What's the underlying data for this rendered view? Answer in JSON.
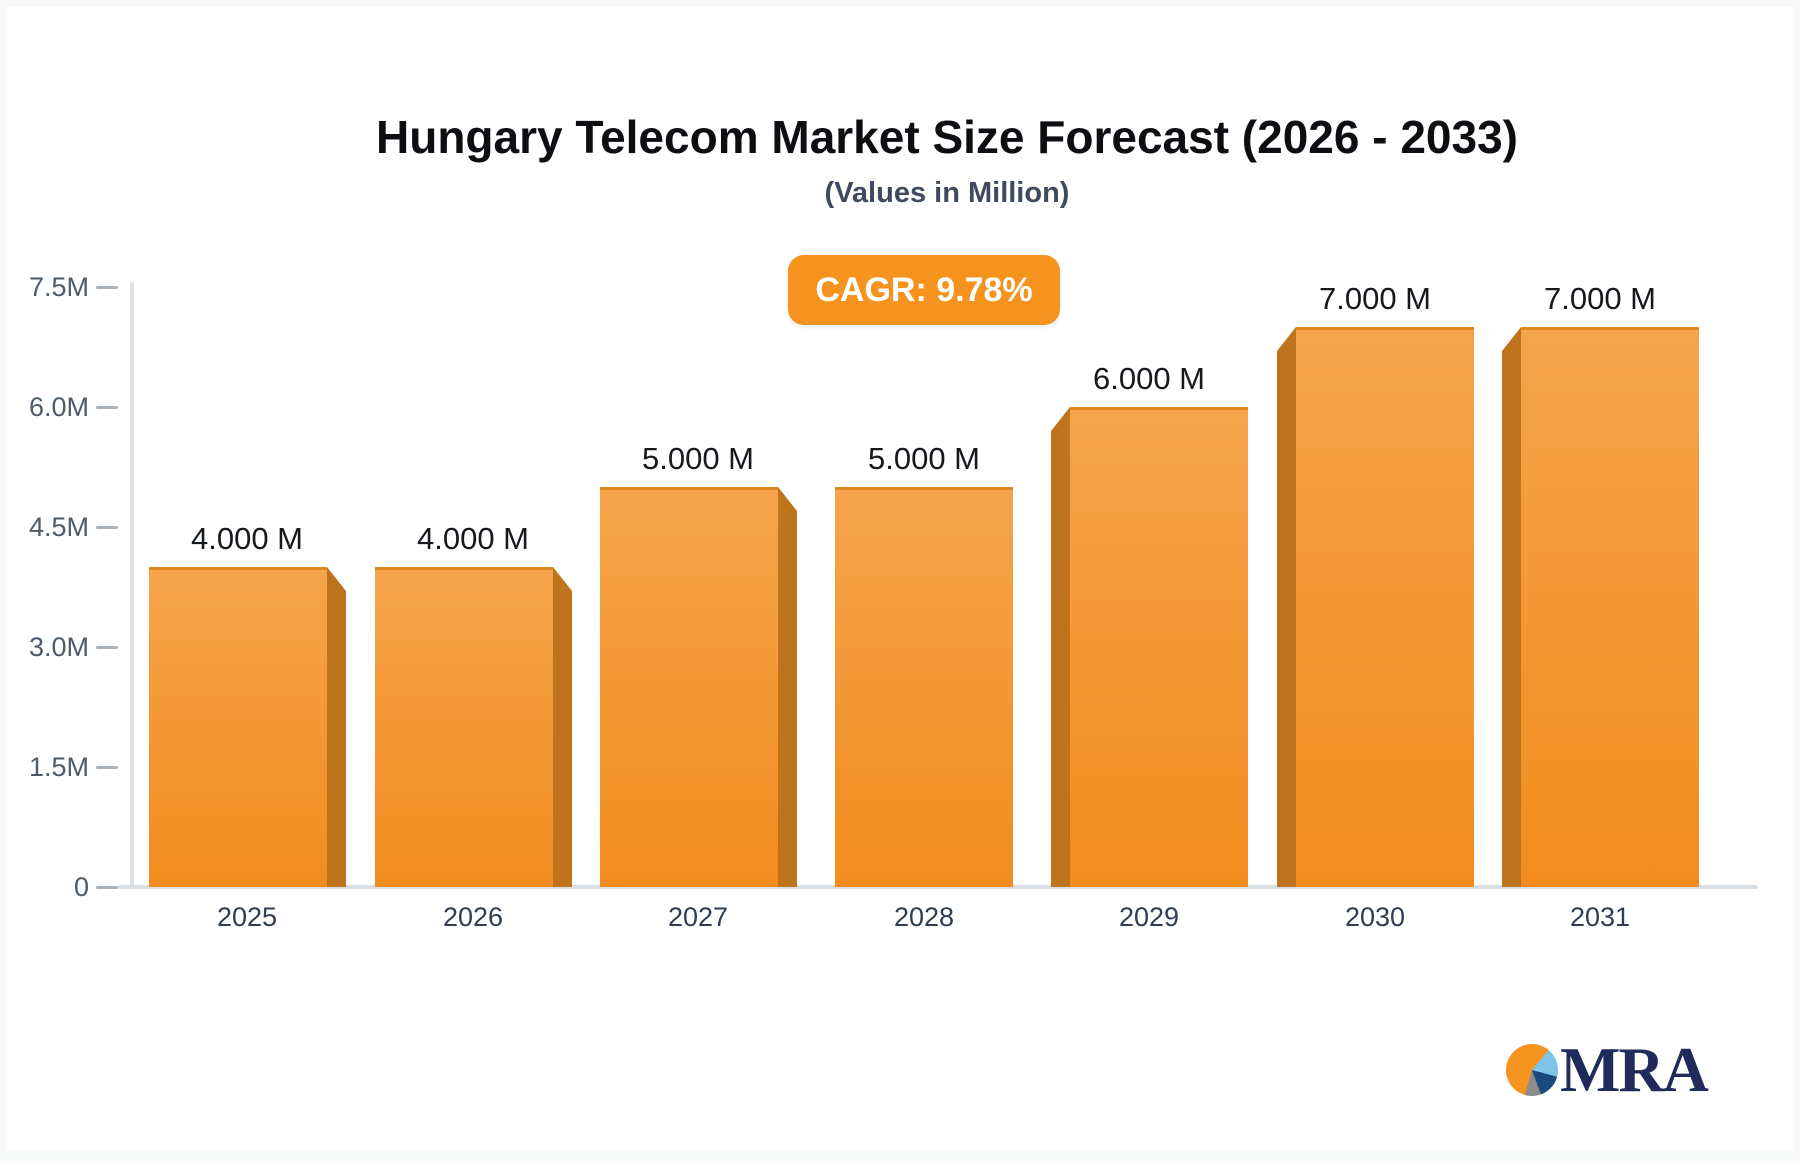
{
  "title": "Hungary Telecom Market Size Forecast (2026 - 2033)",
  "subtitle": "(Values in Million)",
  "badge": {
    "label": "CAGR: 9.78%",
    "bg": "#f6921e"
  },
  "chart_data": {
    "type": "bar",
    "title": "Hungary Telecom Market Size Forecast (2026 - 2033)",
    "subtitle": "(Values in Million)",
    "cagr": "9.78%",
    "categories": [
      "2025",
      "2026",
      "2027",
      "2028",
      "2029",
      "2030",
      "2031"
    ],
    "values": [
      4.0,
      4.0,
      5.0,
      5.0,
      6.0,
      7.0,
      7.0
    ],
    "value_labels": [
      "4.000 M",
      "4.000 M",
      "5.000 M",
      "5.000 M",
      "6.000 M",
      "7.000 M",
      "7.000 M"
    ],
    "unit": "Million",
    "xlabel": "",
    "ylabel": "",
    "ylim": [
      0,
      7.5
    ],
    "yticks": [
      {
        "label": "7.5M",
        "value": 7.5
      },
      {
        "label": "6.0M",
        "value": 6.0
      },
      {
        "label": "4.5M",
        "value": 4.5
      },
      {
        "label": "3.0M",
        "value": 3.0
      },
      {
        "label": "1.5M",
        "value": 1.5
      },
      {
        "label": "0",
        "value": 0
      }
    ],
    "grid": false,
    "legend": false,
    "style": "3d-columns-center-perspective",
    "colors": {
      "bar_top": "#f5a44c",
      "bar_bottom": "#f28c1d",
      "bar_edge": "#de861f",
      "bar_side": "#bd741d",
      "badge_bg": "#f6921e",
      "axis": "#dde2e7",
      "tick_text": "#4e5a69",
      "label_text": "#15181c"
    }
  },
  "logo": {
    "text": "MRA",
    "pie_colors": {
      "orange": "#f5941f",
      "lightblue": "#7ec3e8",
      "navy": "#1a4b7e",
      "gray": "#8c8c8c"
    }
  }
}
